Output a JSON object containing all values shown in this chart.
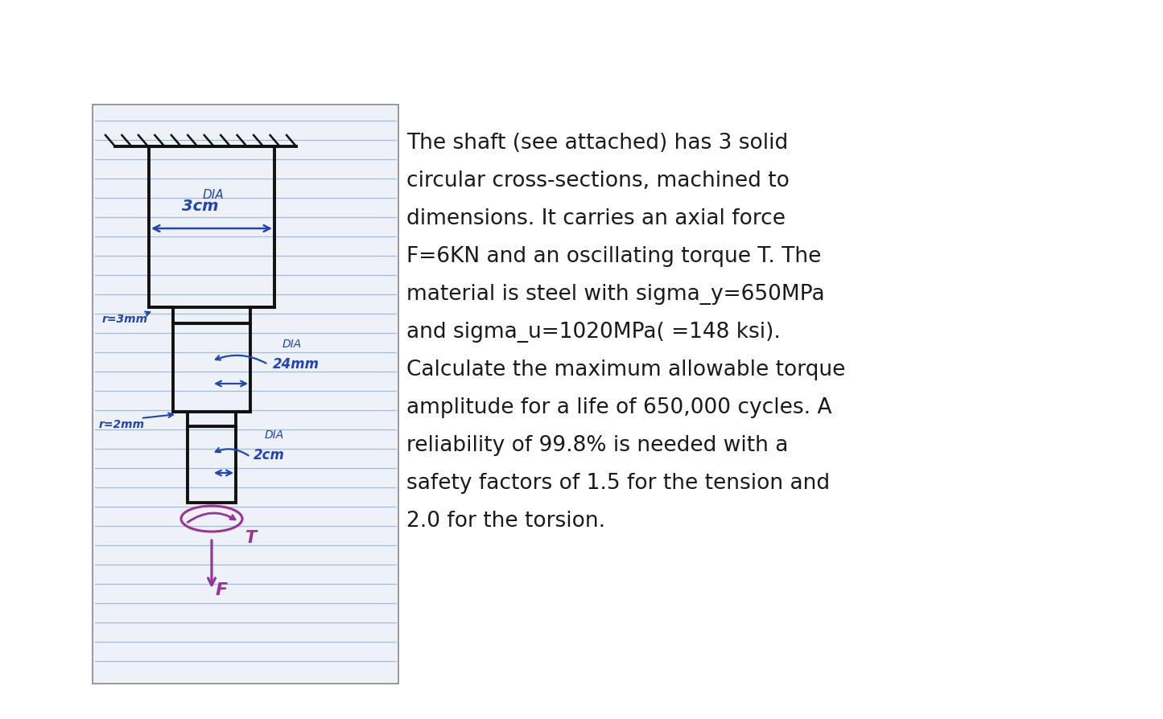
{
  "bg_color": "#ffffff",
  "shaft_color": "#111111",
  "blue": "#2244bb",
  "purple": "#993399",
  "text_color": "#1a1a1a",
  "notebook_bg": "#edf1f8",
  "notebook_line": "#90b0d0",
  "description_lines": [
    "The shaft (see attached) has 3 solid",
    "circular cross-sections, machined to",
    "dimensions. It carries an axial force",
    "F=6KN and an oscillating torque T. The",
    "material is steel with sigma_y=650MPa",
    "and sigma_u=1020MPa( =148 ksi).",
    "Calculate the maximum allowable torque",
    "amplitude for a life of 650,000 cycles. A",
    "reliability of 99.8% is needed with a",
    "safety factors of 1.5 for the tension and",
    "2.0 for the torsion."
  ]
}
